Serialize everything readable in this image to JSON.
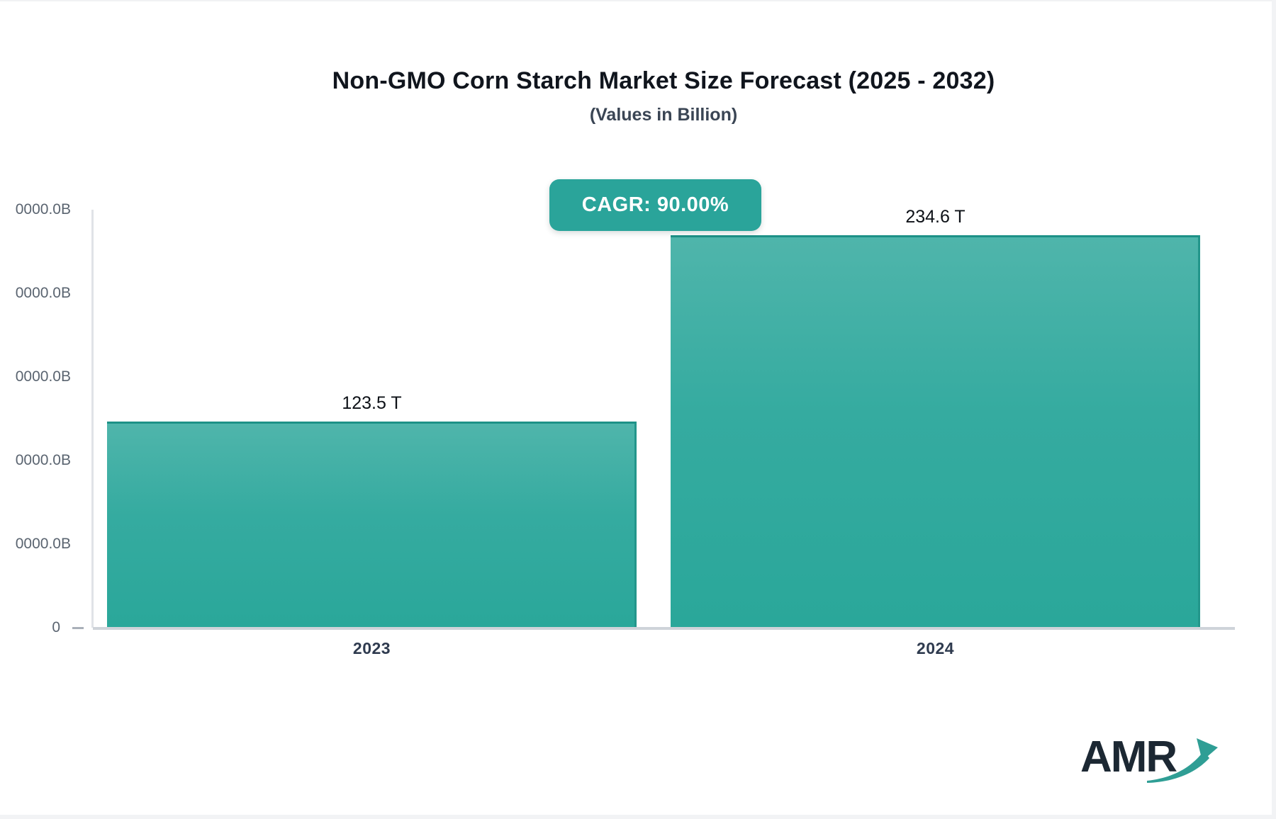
{
  "chart_data": {
    "type": "bar",
    "title": "Non-GMO Corn Starch Market Size Forecast (2025 - 2032)",
    "subtitle": "(Values in Billion)",
    "cagr_badge": "CAGR: 90.00%",
    "categories": [
      "2023",
      "2024"
    ],
    "values_display": [
      "123.5 T",
      "234.6 T"
    ],
    "values_in_billions": [
      123500,
      234600
    ],
    "value_unit": "T",
    "axis_unit": "Billion (B)",
    "ylim_billions": [
      0,
      250000
    ],
    "y_tick_step_billions": 50000,
    "y_tick_labels_bottom_to_top": [
      "0",
      "0000.0B",
      "0000.0B",
      "0000.0B",
      "0000.0B",
      "0000.0B"
    ],
    "legend": "none",
    "grid": "off",
    "colors": {
      "bar_fill_top": "#4fb5ab",
      "bar_fill_bottom": "#2aa79a",
      "bar_border": "#1d9187",
      "badge_bg": "#2aa49a",
      "badge_text": "#ffffff",
      "axis_line": "#e0e3e7",
      "baseline": "#ced3d9",
      "tick_label": "#5a6470",
      "x_label": "#2f3b4f",
      "title": "#10151d",
      "subtitle": "#3a4554"
    }
  },
  "branding": {
    "logo_text": "AMR",
    "logo_text_color": "#1c2833",
    "logo_arrow_color": "#2f9e95"
  }
}
